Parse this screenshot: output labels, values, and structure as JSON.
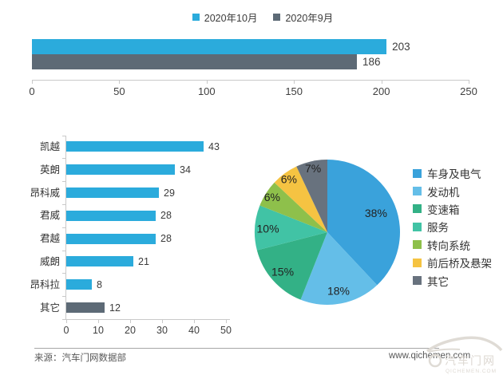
{
  "footer": {
    "source": "来源：汽车门网数据部",
    "site": "www.qichemen.com"
  },
  "watermark": {
    "cn": "汽车门网",
    "en": "QICHEMEN.COM"
  },
  "chart_data": [
    {
      "id": "monthly",
      "type": "bar",
      "orientation": "horizontal",
      "series": [
        {
          "name": "2020年10月",
          "color": "#2BABDC",
          "values": [
            203
          ]
        },
        {
          "name": "2020年9月",
          "color": "#5D6A76",
          "values": [
            186
          ]
        }
      ],
      "xlim": [
        0,
        250
      ],
      "xticks": [
        0,
        50,
        100,
        150,
        200,
        250
      ],
      "legend_position": "top",
      "data_labels": true
    },
    {
      "id": "models",
      "type": "bar",
      "orientation": "horizontal",
      "categories": [
        "凯越",
        "英朗",
        "昂科威",
        "君威",
        "君越",
        "威朗",
        "昂科拉",
        "其它"
      ],
      "values": [
        43,
        34,
        29,
        28,
        28,
        21,
        8,
        12
      ],
      "bar_colors": [
        "#2BABDC",
        "#2BABDC",
        "#2BABDC",
        "#2BABDC",
        "#2BABDC",
        "#2BABDC",
        "#2BABDC",
        "#5D6A76"
      ],
      "xlim": [
        0,
        50
      ],
      "xticks": [
        0,
        10,
        20,
        30,
        40,
        50
      ],
      "data_labels": true
    },
    {
      "id": "faults",
      "type": "pie",
      "start_angle_deg": 0,
      "clockwise": true,
      "labels_format": "percent",
      "legend_position": "right",
      "slices": [
        {
          "label": "车身及电气",
          "value": 38,
          "color": "#3AA2DB"
        },
        {
          "label": "发动机",
          "value": 18,
          "color": "#64BEE8"
        },
        {
          "label": "变速箱",
          "value": 15,
          "color": "#33B186"
        },
        {
          "label": "服务",
          "value": 10,
          "color": "#41C3A5"
        },
        {
          "label": "转向系统",
          "value": 6,
          "color": "#8EC04B"
        },
        {
          "label": "前后桥及悬架",
          "value": 6,
          "color": "#F5C342"
        },
        {
          "label": "其它",
          "value": 7,
          "color": "#68727E"
        }
      ]
    }
  ]
}
